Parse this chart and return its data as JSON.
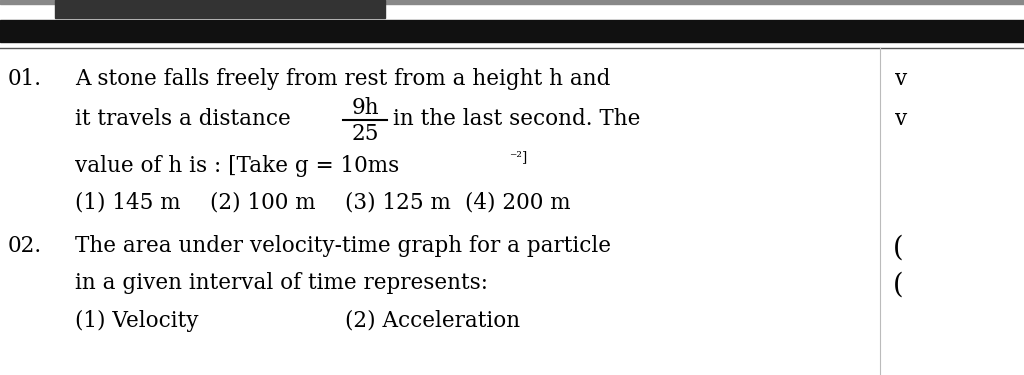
{
  "background_color": "#ffffff",
  "header_thin_bar_color": "#888888",
  "header_thick_bar_color": "#111111",
  "header_block_color": "#333333",
  "text_color": "#000000",
  "q1_number": "01.",
  "q1_line1": "A stone falls freely from rest from a height h and",
  "q1_line2_pre": "it travels a distance",
  "q1_fraction_num": "9h",
  "q1_fraction_den": "25",
  "q1_line2_post": "in the last second. The",
  "q1_line3a": "value of h is : [Take g = 10ms",
  "q1_line3b": "⁻²]",
  "q1_opt1": "(1) 145 m",
  "q1_opt2": "(2) 100 m",
  "q1_opt3": "(3) 125 m",
  "q1_opt4": "(4) 200 m",
  "q2_number": "02.",
  "q2_line1": "The area under velocity-time graph for a particle",
  "q2_line2": "in a given interval of time represents:",
  "q2_opt1": "(1) Velocity",
  "q2_opt2": "(2) Acceleration",
  "right_v1": "v",
  "right_v2": "v",
  "right_paren1": "(",
  "right_paren2": "(",
  "font_size": 15.5,
  "font_size_super": 10,
  "font_family": "DejaVu Serif"
}
